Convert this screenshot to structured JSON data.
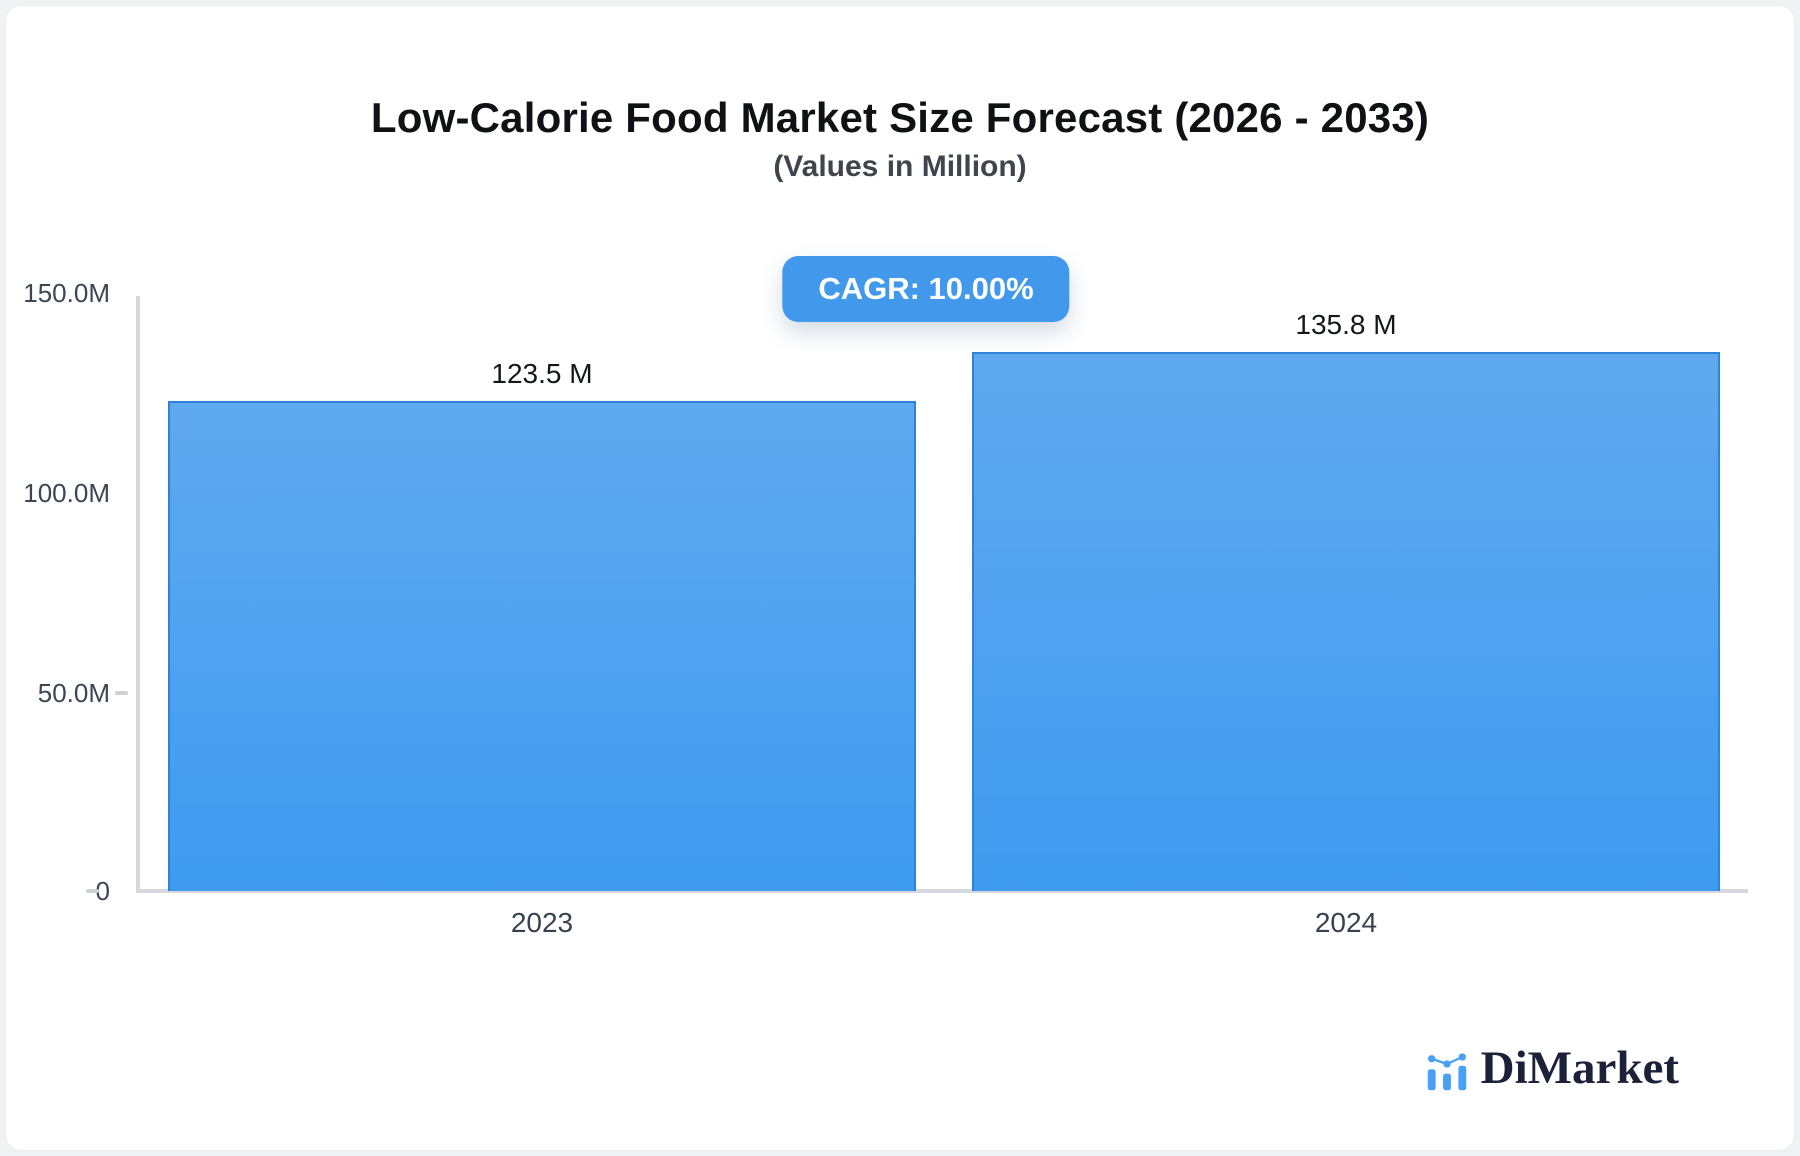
{
  "chart_data": {
    "type": "bar",
    "title": "Low-Calorie Food Market Size Forecast (2026 - 2033)",
    "subtitle": "(Values in Million)",
    "cagr_label": "CAGR: 10.00%",
    "categories": [
      "2023",
      "2024"
    ],
    "values": [
      123.5,
      135.8
    ],
    "value_labels": [
      "123.5 M",
      "135.8 M"
    ],
    "unit": "Million",
    "ylim": [
      0,
      150
    ],
    "yticks": [
      {
        "value": 150,
        "label": "150.0M"
      },
      {
        "value": 100,
        "label": "100.0M"
      },
      {
        "value": 50,
        "label": "50.0M"
      },
      {
        "value": 0,
        "label": "0"
      }
    ],
    "grid": false,
    "legend": false,
    "bar_orientation": "vertical"
  },
  "footer": {
    "logo_text": "DiMarket",
    "logo_icon": "dimarket-bar-chart-logo"
  },
  "colors": {
    "accent_blue": "#4299ec",
    "bar_gradient_top": "#5fa9ef",
    "bar_gradient_bottom": "#3f9bf0",
    "bar_border": "#2f82d8",
    "axis_line": "#d5d9de",
    "tick_text": "#3b4653",
    "title_text": "#0f1115",
    "subtitle_text": "#40454d",
    "value_label_text": "#14171c",
    "logo_navy": "#1b2138",
    "logo_blue": "#4aa0f4",
    "page_background": "#f1f2f4",
    "card_background": "#ffffff"
  }
}
